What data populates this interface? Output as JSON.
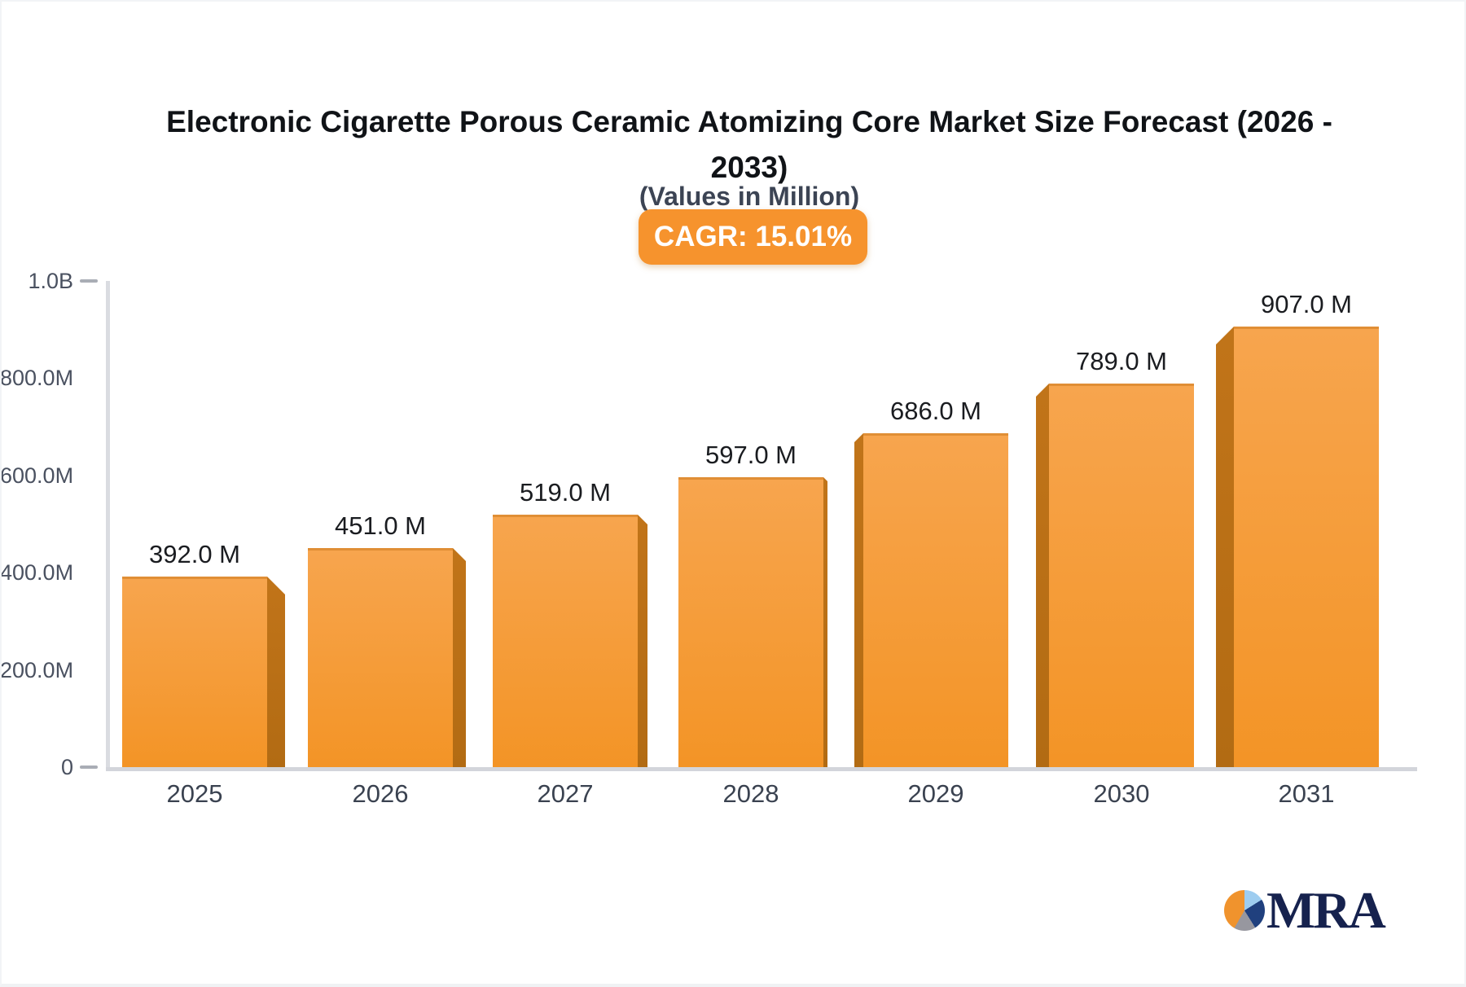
{
  "header": {
    "title_line1": "Electronic Cigarette Porous Ceramic Atomizing Core Market Size Forecast (2026 -",
    "title_line2": "2033)",
    "subtitle": "(Values in Million)",
    "cagr_badge": "CAGR: 15.01%"
  },
  "chart_data": {
    "type": "bar",
    "title": "Electronic Cigarette Porous Ceramic Atomizing Core Market Size Forecast (2026 - 2033)",
    "subtitle": "(Values in Million)",
    "cagr": "15.01%",
    "unit": "Million USD",
    "categories": [
      "2025",
      "2026",
      "2027",
      "2028",
      "2029",
      "2030",
      "2031"
    ],
    "values": [
      392,
      451,
      519,
      597,
      686,
      789,
      907
    ],
    "value_labels": [
      "392.0 M",
      "451.0 M",
      "519.0 M",
      "597.0 M",
      "686.0 M",
      "789.0 M",
      "907.0 M"
    ],
    "xlabel": "",
    "ylabel": "",
    "ylim": [
      0,
      1000
    ],
    "grid": false,
    "legend": false,
    "y_ticks": [
      {
        "label": "1.0B",
        "value": 1000,
        "dash": true
      },
      {
        "label": "800.0M",
        "value": 800,
        "dash": false
      },
      {
        "label": "600.0M",
        "value": 600,
        "dash": false
      },
      {
        "label": "400.0M",
        "value": 400,
        "dash": false
      },
      {
        "label": "200.0M",
        "value": 200,
        "dash": false
      },
      {
        "label": "0",
        "value": 0,
        "dash": true
      }
    ],
    "colors": {
      "bar_face_top": "#f7a54e",
      "bar_face_bottom": "#f39426",
      "bar_side": "#bb7017",
      "badge": "#f6932d",
      "axis": "#d3d5db",
      "tick_text": "#4a5160",
      "value_text": "#1a1c20"
    }
  },
  "logo": {
    "text": "MRA"
  }
}
